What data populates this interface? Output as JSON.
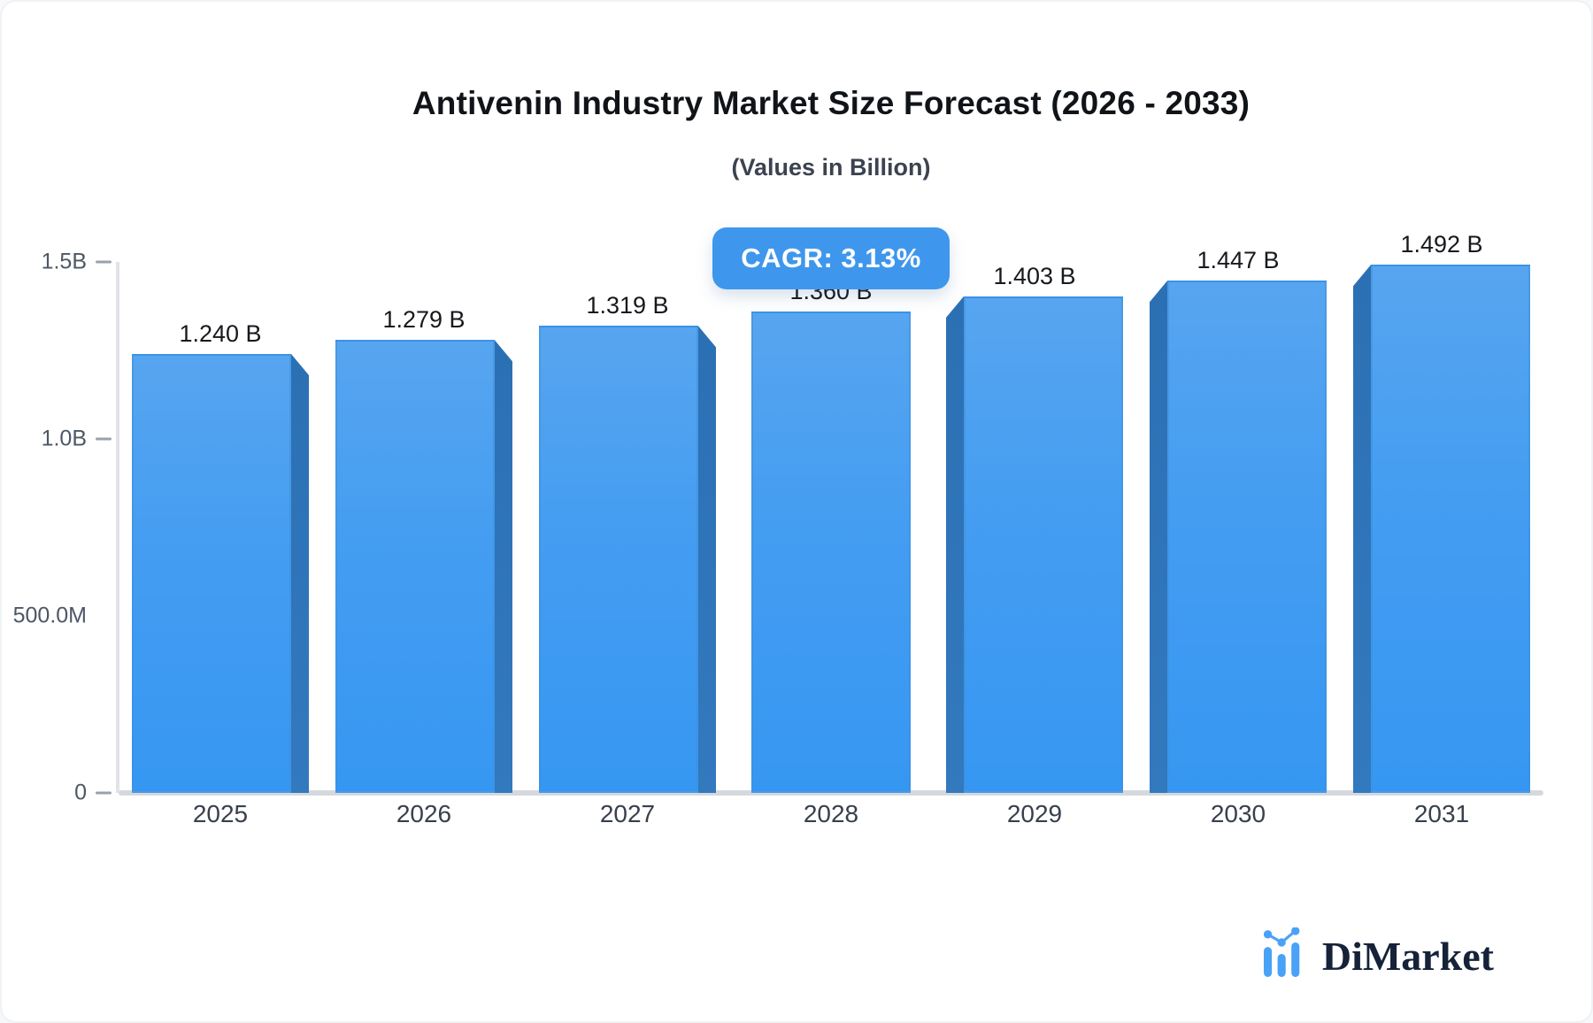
{
  "title": "Antivenin Industry Market Size Forecast (2026 - 2033)",
  "subtitle": "(Values in Billion)",
  "cagr_badge": "CAGR: 3.13%",
  "chart_data": {
    "type": "bar",
    "categories": [
      "2025",
      "2026",
      "2027",
      "2028",
      "2029",
      "2030",
      "2031"
    ],
    "values": [
      1.24,
      1.279,
      1.319,
      1.36,
      1.403,
      1.447,
      1.492
    ],
    "value_labels": [
      "1.240 B",
      "1.279 B",
      "1.319 B",
      "1.360 B",
      "1.403 B",
      "1.447 B",
      "1.492 B"
    ],
    "title": "Antivenin Industry Market Size Forecast (2026 - 2033)",
    "subtitle": "(Values in Billion)",
    "annotation": "CAGR: 3.13%",
    "xlabel": "",
    "ylabel": "",
    "ylim": [
      0,
      1.5
    ],
    "grid": false,
    "legend": "none",
    "y_ticks": [
      {
        "label": "0",
        "value": 0,
        "dash": true
      },
      {
        "label": "500.0M",
        "value": 0.5,
        "dash": false
      },
      {
        "label": "1.0B",
        "value": 1.0,
        "dash": true
      },
      {
        "label": "1.5B",
        "value": 1.5,
        "dash": true
      }
    ]
  },
  "colors": {
    "bar_face_top": "#57a5f0",
    "bar_face_bottom": "#3697f2",
    "bar_side": "#2d76ba",
    "badge_bg": "#3e97ec",
    "baseline": "#d5d9de",
    "axis_line": "#e0e3e8",
    "value_label": "#16191d",
    "tick_label": "#4d5765",
    "brand_navy": "#152238",
    "brand_blue": "#4aa2f7"
  },
  "footer": {
    "brand": "DiMarket"
  }
}
